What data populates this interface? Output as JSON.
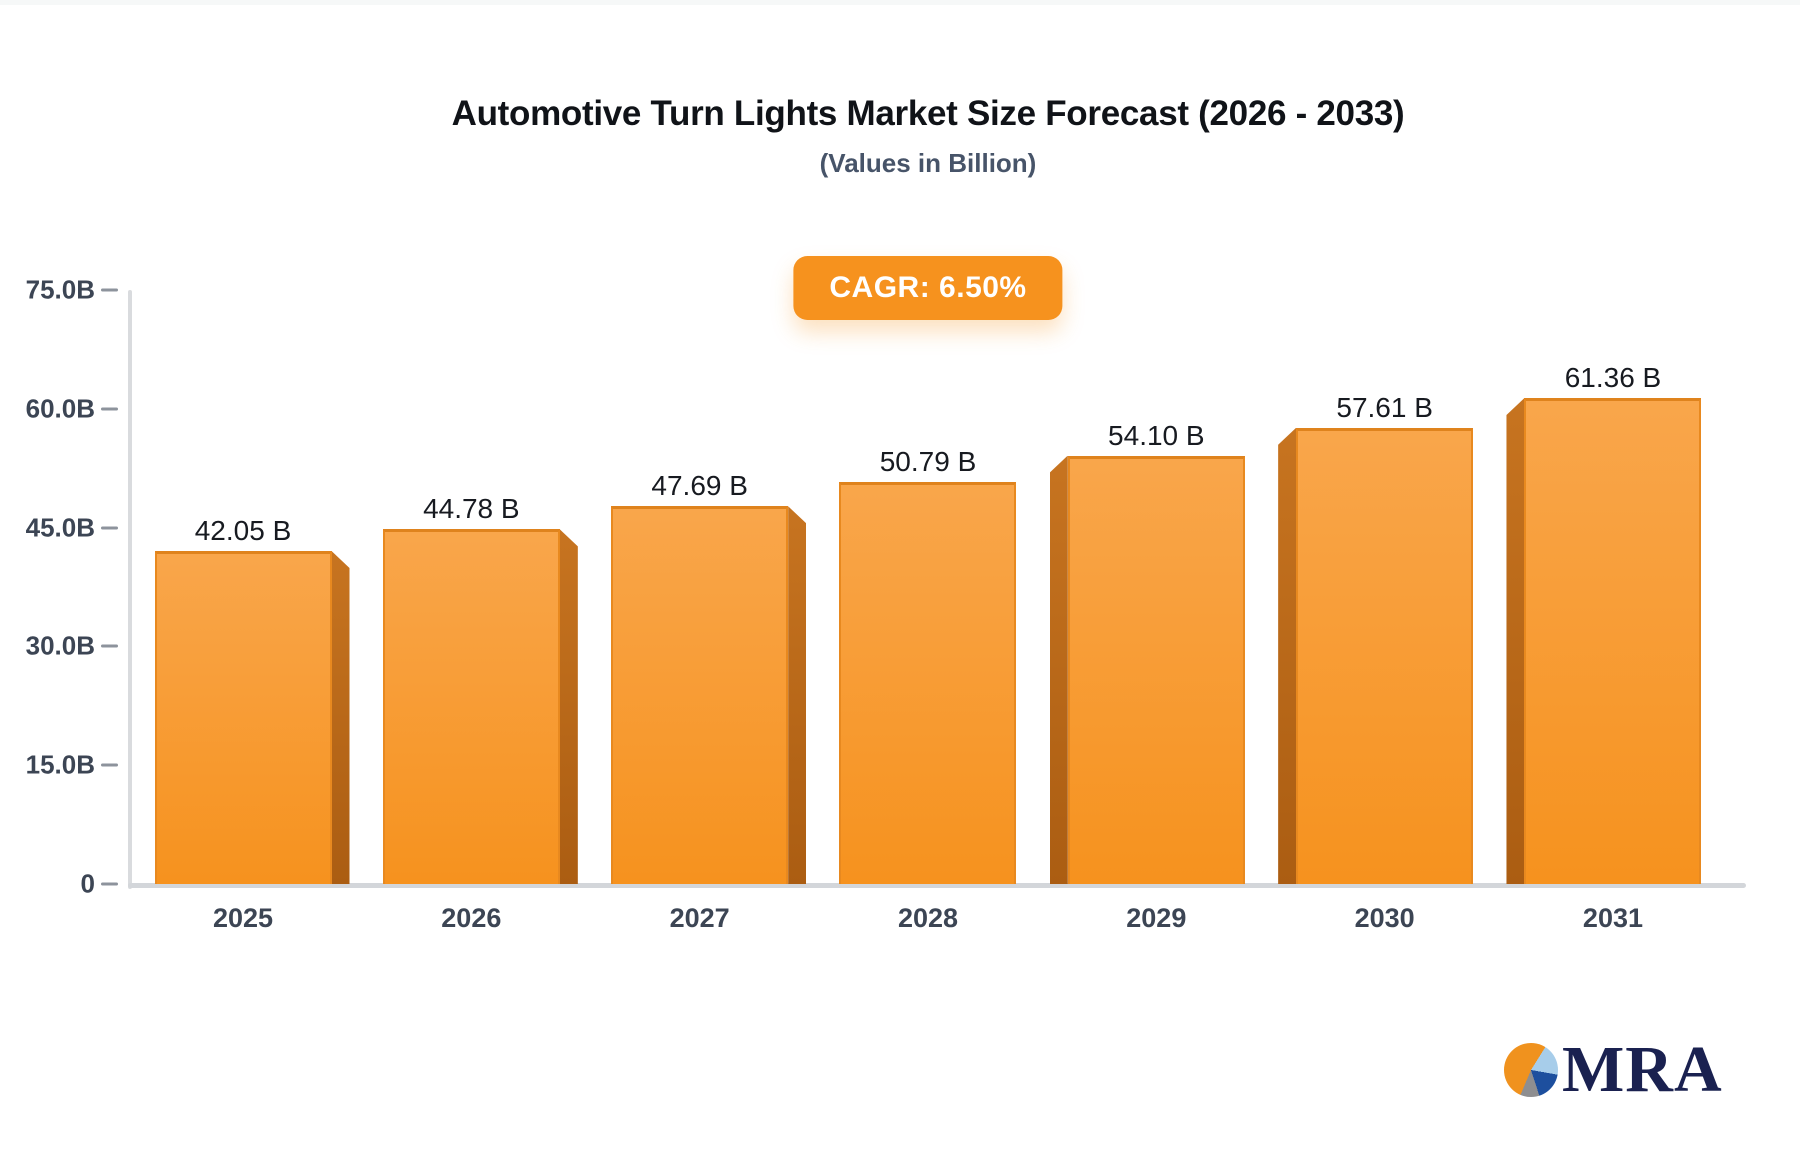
{
  "header": {
    "title": "Automotive Turn Lights Market Size Forecast (2026 - 2033)",
    "subtitle": "(Values in Billion)"
  },
  "badge": {
    "label": "CAGR: 6.50%",
    "bg_color": "#F6921E",
    "text_color": "#FFFFFF"
  },
  "chart_data": {
    "type": "bar",
    "title": "Automotive Turn Lights Market Size Forecast (2026 - 2033)",
    "subtitle": "(Values in Billion)",
    "xlabel": "",
    "ylabel": "",
    "unit": "Billion",
    "categories": [
      "2025",
      "2026",
      "2027",
      "2028",
      "2029",
      "2030",
      "2031"
    ],
    "values": [
      42.05,
      44.78,
      47.69,
      50.79,
      54.1,
      57.61,
      61.36
    ],
    "value_labels": [
      "42.05 B",
      "44.78 B",
      "47.69 B",
      "50.79 B",
      "54.10 B",
      "57.61 B",
      "61.36 B"
    ],
    "ylim": [
      0,
      75
    ],
    "yticks": [
      {
        "value": 0,
        "label": "0"
      },
      {
        "value": 15,
        "label": "15.0B"
      },
      {
        "value": 30,
        "label": "30.0B"
      },
      {
        "value": 45,
        "label": "45.0B"
      },
      {
        "value": 60,
        "label": "60.0B"
      },
      {
        "value": 75,
        "label": "75.0B"
      }
    ],
    "grid": false,
    "legend": false,
    "colors": {
      "front_top": "#F9A64B",
      "front_bottom": "#F6921E",
      "side_top": "#C77420",
      "side_bottom": "#AB5D12",
      "axis_line": "#D9DBDE",
      "tick_text": "#3C4554"
    }
  },
  "logo": {
    "text": "MRA",
    "text_color": "#1A2150",
    "pie_colors": {
      "orange": "#F0921E",
      "light_blue": "#A7CDEA",
      "dark_blue": "#1D4F9E",
      "gray": "#8E8E90"
    }
  }
}
